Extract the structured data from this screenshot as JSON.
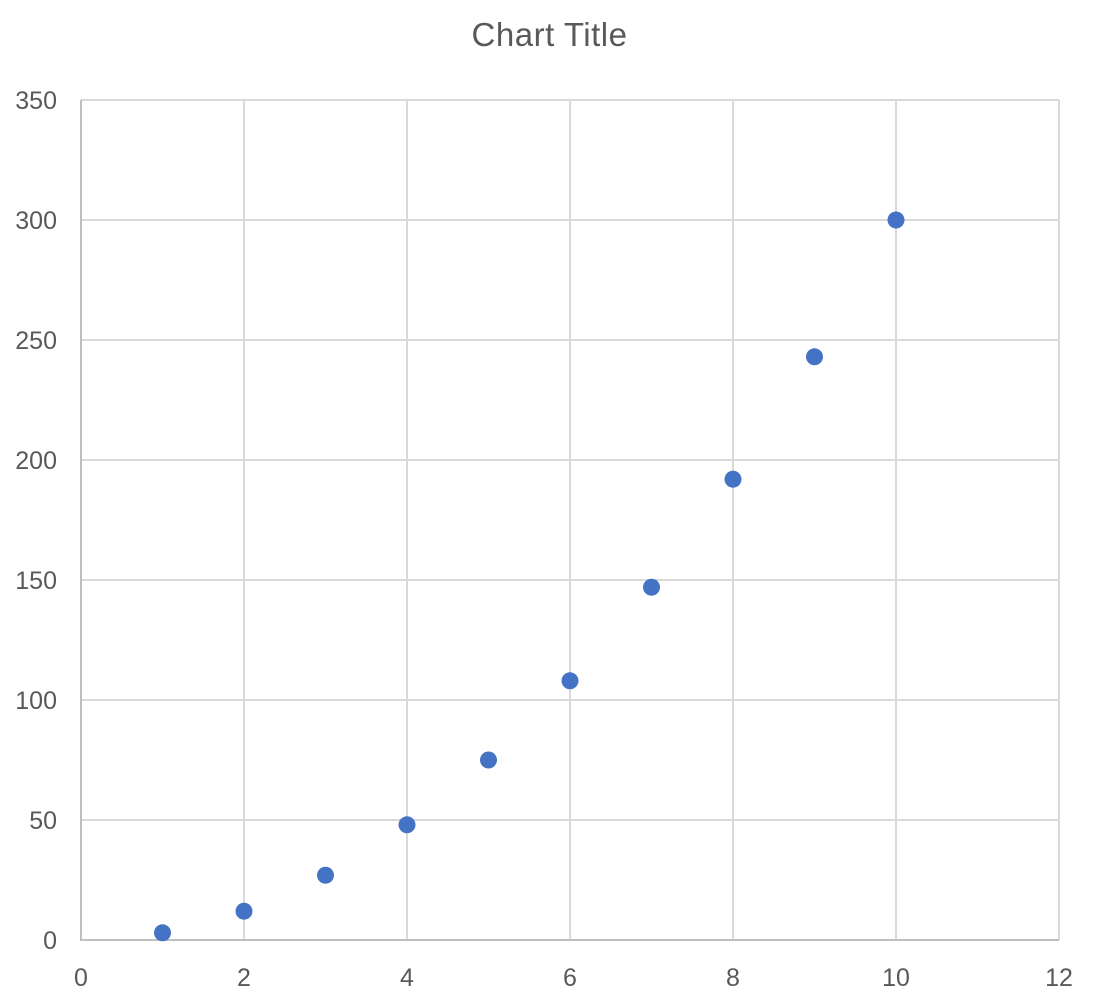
{
  "chart_data": {
    "type": "scatter",
    "title": "Chart Title",
    "xlabel": "",
    "ylabel": "",
    "x": [
      1,
      2,
      3,
      4,
      5,
      6,
      7,
      8,
      9,
      10
    ],
    "y": [
      3,
      12,
      27,
      48,
      75,
      108,
      147,
      192,
      243,
      300
    ],
    "xlim": [
      0,
      12
    ],
    "ylim": [
      0,
      350
    ],
    "x_ticks": [
      0,
      2,
      4,
      6,
      8,
      10,
      12
    ],
    "y_ticks": [
      0,
      50,
      100,
      150,
      200,
      250,
      300,
      350
    ],
    "grid": true,
    "legend": false,
    "marker_color": "#4472C4",
    "gridline_color": "#D9D9D9",
    "axis_line_color": "#BFBFBF",
    "tick_label_color": "#595959",
    "title_color": "#595959"
  }
}
